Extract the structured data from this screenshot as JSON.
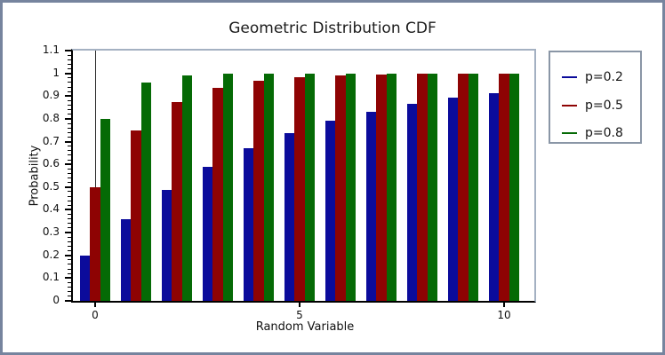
{
  "chart_data": {
    "type": "bar",
    "title": "Geometric Distribution CDF",
    "xlabel": "Random Variable",
    "ylabel": "Probability",
    "categories": [
      0,
      1,
      2,
      3,
      4,
      5,
      6,
      7,
      8,
      9,
      10
    ],
    "series": [
      {
        "name": "p=0.2",
        "color": "#0B0B9B",
        "values": [
          0.2,
          0.36,
          0.488,
          0.5904,
          0.67232,
          0.73786,
          0.79028,
          0.83223,
          0.86578,
          0.89263,
          0.9141
        ]
      },
      {
        "name": "p=0.5",
        "color": "#8E0303",
        "values": [
          0.5,
          0.75,
          0.875,
          0.9375,
          0.96875,
          0.98438,
          0.99219,
          0.99609,
          0.99805,
          0.99902,
          0.99951
        ]
      },
      {
        "name": "p=0.8",
        "color": "#056A05",
        "values": [
          0.8,
          0.96,
          0.992,
          0.9984,
          0.99968,
          0.99994,
          0.99999,
          1.0,
          1.0,
          1.0,
          1.0
        ]
      }
    ],
    "ylim": [
      0,
      1.1
    ],
    "yticks": [
      0,
      0.1,
      0.2,
      0.3,
      0.4,
      0.5,
      0.6,
      0.7,
      0.8,
      0.9,
      1,
      1.1
    ],
    "ytick_labels": [
      "0",
      "0.1",
      "0.2",
      "0.3",
      "0.4",
      "0.5",
      "0.6",
      "0.7",
      "0.8",
      "0.9",
      "1",
      "1.1"
    ],
    "y_minor_tick_step": 0.02,
    "xticks": [
      0,
      5,
      10
    ],
    "xtick_labels": [
      "0",
      "5",
      "10"
    ],
    "bar_width_data_units": 0.25,
    "axvline_x": 0,
    "grid": false,
    "legend": {
      "style": "line",
      "position": "outside-right",
      "entries": [
        "p=0.2",
        "p=0.5",
        "p=0.8"
      ]
    },
    "colors": {
      "window_frame": "#76849E",
      "top_right_spine": "#A4B1C2",
      "axis_spine": "#000000",
      "legend_border": "#8A96A6",
      "background": "#FFFFFF"
    }
  }
}
